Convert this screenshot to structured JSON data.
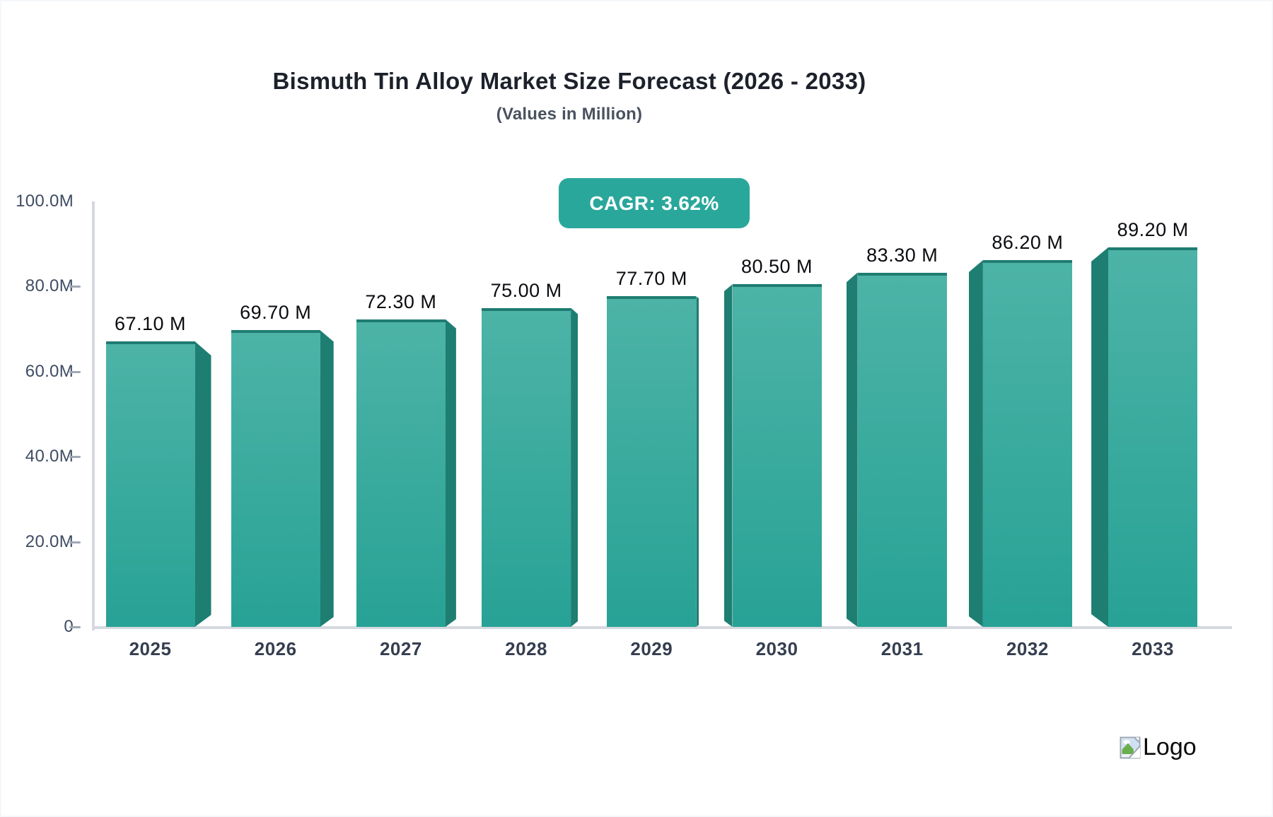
{
  "chart_data": {
    "type": "bar",
    "title": "Bismuth Tin Alloy Market Size Forecast (2026 - 2033)",
    "subtitle": "(Values in Million)",
    "categories": [
      "2025",
      "2026",
      "2027",
      "2028",
      "2029",
      "2030",
      "2031",
      "2032",
      "2033"
    ],
    "values": [
      67.1,
      69.7,
      72.3,
      75.0,
      77.7,
      80.5,
      83.3,
      86.2,
      89.2
    ],
    "value_labels": [
      "67.10 M",
      "69.70 M",
      "72.30 M",
      "75.00 M",
      "77.70 M",
      "80.50 M",
      "83.30 M",
      "86.20 M",
      "89.20 M"
    ],
    "xlabel": "",
    "ylabel": "",
    "ylim": [
      0,
      100
    ],
    "yticks": [
      {
        "value": 100,
        "label": "100.0M",
        "dash": false
      },
      {
        "value": 80,
        "label": "80.0M",
        "dash": true
      },
      {
        "value": 60,
        "label": "60.0M",
        "dash": true
      },
      {
        "value": 40,
        "label": "40.0M",
        "dash": true
      },
      {
        "value": 20,
        "label": "20.0M",
        "dash": true
      },
      {
        "value": 0,
        "label": "0",
        "dash": true
      }
    ],
    "grid": false,
    "legend": "none",
    "annotations": [
      {
        "text": "CAGR: 3.62%"
      }
    ]
  },
  "logo": {
    "text": "Logo"
  },
  "colors": {
    "bar_gradient_top": "#4db3a7",
    "bar_gradient_bottom": "#27a295",
    "bar_top_edge": "#1f7c71",
    "bar_side": "#1e7e72",
    "badge_bg": "#2aa79b",
    "badge_text": "#ffffff",
    "axis_line": "#d5d9df",
    "tick_dash": "#9fa8b4",
    "title_color": "#1c212b",
    "subtitle_color": "#4a5260",
    "value_label_color": "#0a0c10",
    "year_label_color": "#353e4f",
    "y_label_color": "#3f4c63"
  }
}
